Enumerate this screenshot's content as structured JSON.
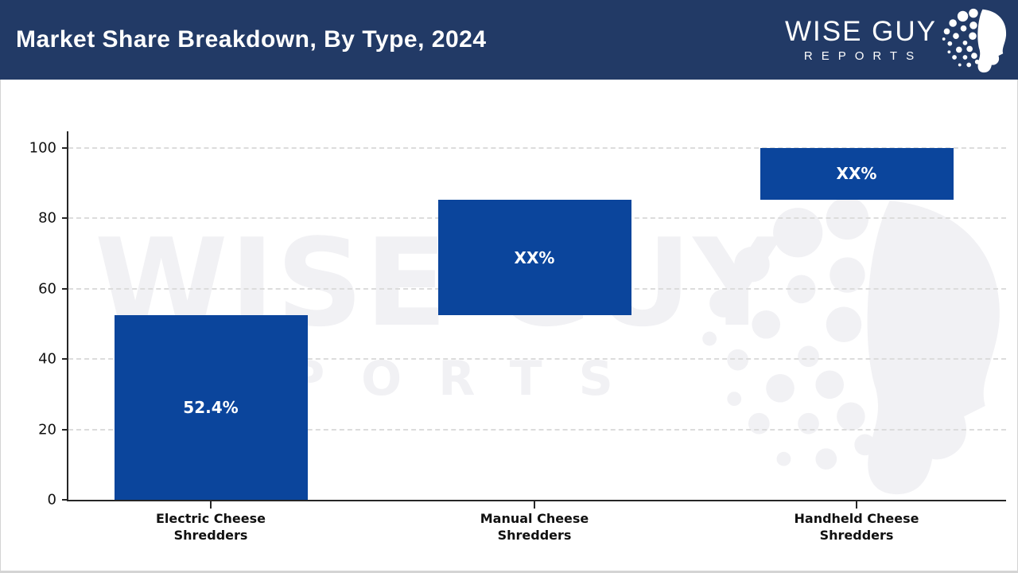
{
  "header": {
    "title": "Market Share Breakdown, By Type, 2024",
    "logo": {
      "name": "WISE GUY",
      "subtitle": "REPORTS"
    },
    "bg_color": "#223a66"
  },
  "watermark": {
    "line1": "WISE GUY",
    "line2": "REPORTS"
  },
  "chart_data": {
    "type": "bar",
    "subtype": "stacked-waterfall",
    "title": "Market Share Breakdown, By Type, 2024",
    "categories": [
      "Electric Cheese Shredders",
      "Manual Cheese Shredders",
      "Handheld Cheese Shredders"
    ],
    "series": [
      {
        "name": "Electric Cheese Shredders",
        "start": 0,
        "end": 52.4,
        "label": "52.4%"
      },
      {
        "name": "Manual Cheese Shredders",
        "start": 52.4,
        "end": 85.3,
        "label": "XX%"
      },
      {
        "name": "Handheld Cheese Shredders",
        "start": 85.3,
        "end": 100,
        "label": "XX%"
      }
    ],
    "xlabel": "",
    "ylabel": "",
    "ylim": [
      0,
      105
    ],
    "yticks": [
      0,
      20,
      40,
      60,
      80,
      100
    ],
    "grid": "horizontal-dashed",
    "legend": "none",
    "bar_color": "#0b459c",
    "bar_label_color": "#ffffff",
    "axis_color": "#262626",
    "grid_color": "#dcdcdc"
  }
}
